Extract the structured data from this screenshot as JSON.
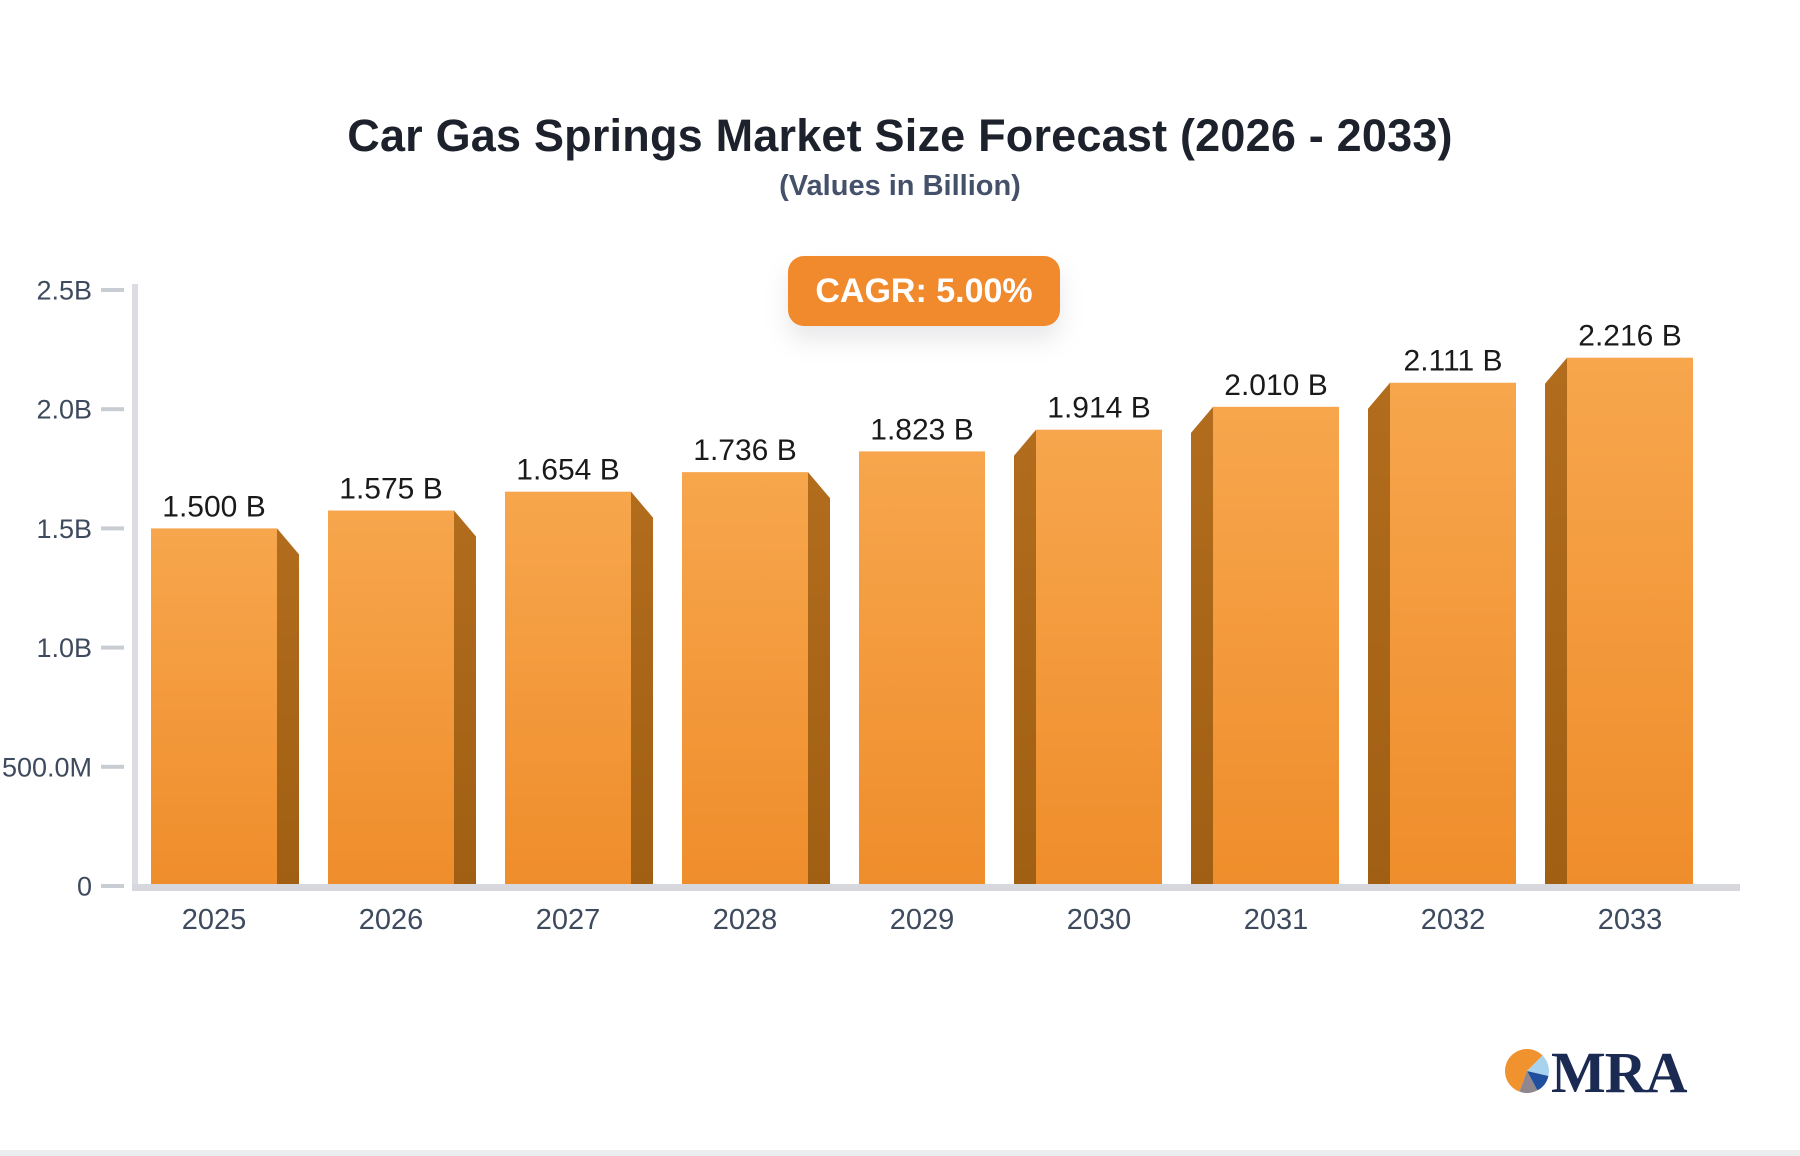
{
  "title": "Car Gas Springs Market Size Forecast (2026 - 2033)",
  "subtitle": "(Values in Billion)",
  "badge": {
    "label": "CAGR: 5.00%",
    "color": "#f1892d"
  },
  "chart_data": {
    "type": "bar",
    "title": "Car Gas Springs Market Size Forecast (2026 - 2033)",
    "subtitle": "(Values in Billion)",
    "categories": [
      "2025",
      "2026",
      "2027",
      "2028",
      "2029",
      "2030",
      "2031",
      "2032",
      "2033"
    ],
    "values": [
      1.5,
      1.575,
      1.654,
      1.736,
      1.823,
      1.914,
      2.01,
      2.111,
      2.216
    ],
    "value_labels": [
      "1.500 B",
      "1.575 B",
      "1.654 B",
      "1.736 B",
      "1.823 B",
      "1.914 B",
      "2.010 B",
      "2.111 B",
      "2.216 B"
    ],
    "unit": "Billion",
    "cagr": "5.00%",
    "xlabel": "",
    "ylabel": "",
    "ylim": [
      0,
      2.5
    ],
    "ytick_values": [
      0,
      0.5,
      1.0,
      1.5,
      2.0,
      2.5
    ],
    "ytick_labels": [
      "0",
      "500.0M",
      "1.0B",
      "1.5B",
      "2.0B",
      "2.5B"
    ],
    "grid": false,
    "legend": "none",
    "bar_style": "3d",
    "colors": {
      "bar_top": "#f7a64d",
      "bar_bottom": "#ef8d2b",
      "bar_side_top": "#b26c1d",
      "bar_side_bottom": "#a05f13",
      "axis_line": "#dbdde2",
      "baseline": "#d6d8dd",
      "tick": "#c8ccd3",
      "axis_text": "#3e4a5e",
      "value_text": "#1a1a1a"
    }
  },
  "logo": {
    "text": "MRA",
    "text_color": "#1b2a52",
    "pie_slices": [
      {
        "name": "orange",
        "from": 200,
        "to": 405,
        "color": "#f0922e"
      },
      {
        "name": "light-blue",
        "from": 45,
        "to": 103,
        "color": "#a7d3ef"
      },
      {
        "name": "navy-blue",
        "from": 103,
        "to": 152,
        "color": "#1f4f9d"
      },
      {
        "name": "gray",
        "from": 152,
        "to": 200,
        "color": "#8f878d"
      }
    ]
  }
}
